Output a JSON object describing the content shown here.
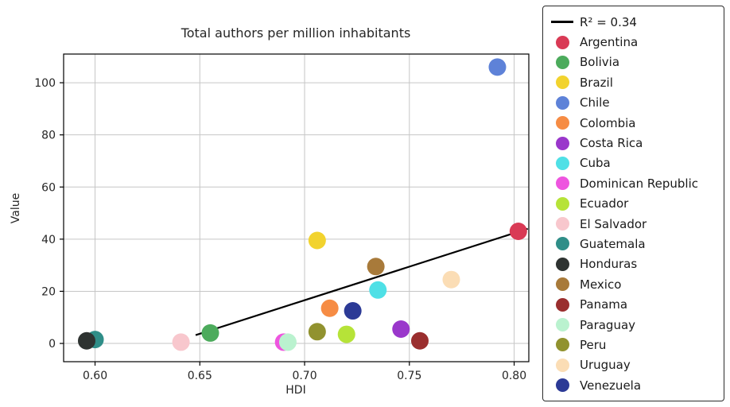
{
  "chart_data": {
    "type": "scatter",
    "title": "Total authors per million inhabitants",
    "xlabel": "HDI",
    "ylabel": "Value",
    "xlim": [
      0.585,
      0.807
    ],
    "ylim": [
      -7,
      111
    ],
    "xticks": [
      0.6,
      0.65,
      0.7,
      0.75,
      0.8
    ],
    "yticks": [
      0,
      20,
      40,
      60,
      80,
      100
    ],
    "grid": true,
    "legend_position": "outside-right",
    "regression": {
      "label": "R² = 0.34",
      "color": "#000000",
      "x": [
        0.648,
        0.8065
      ],
      "y": [
        3.2,
        44
      ]
    },
    "series": [
      {
        "name": "Argentina",
        "color": "#d93a55",
        "x": 0.802,
        "y": 43
      },
      {
        "name": "Bolivia",
        "color": "#4cab5c",
        "x": 0.655,
        "y": 4
      },
      {
        "name": "Brazil",
        "color": "#f2d32e",
        "x": 0.706,
        "y": 39.5
      },
      {
        "name": "Chile",
        "color": "#5e82d8",
        "x": 0.792,
        "y": 106
      },
      {
        "name": "Colombia",
        "color": "#f68c44",
        "x": 0.712,
        "y": 13.5
      },
      {
        "name": "Costa Rica",
        "color": "#9a37cb",
        "x": 0.746,
        "y": 5.5
      },
      {
        "name": "Cuba",
        "color": "#4fe0e6",
        "x": 0.735,
        "y": 20.5
      },
      {
        "name": "Dominican Republic",
        "color": "#ee55df",
        "x": 0.69,
        "y": 0.5
      },
      {
        "name": "Ecuador",
        "color": "#b6e338",
        "x": 0.72,
        "y": 3.5
      },
      {
        "name": "El Salvador",
        "color": "#f8c7cd",
        "x": 0.641,
        "y": 0.5
      },
      {
        "name": "Guatemala",
        "color": "#2f8e88",
        "x": 0.6,
        "y": 1.5
      },
      {
        "name": "Honduras",
        "color": "#2e3331",
        "x": 0.596,
        "y": 1
      },
      {
        "name": "Mexico",
        "color": "#a87a3a",
        "x": 0.734,
        "y": 29.5
      },
      {
        "name": "Panama",
        "color": "#9a2e2e",
        "x": 0.755,
        "y": 1
      },
      {
        "name": "Paraguay",
        "color": "#baf2cf",
        "x": 0.692,
        "y": 0.5
      },
      {
        "name": "Peru",
        "color": "#91922f",
        "x": 0.706,
        "y": 4.5
      },
      {
        "name": "Uruguay",
        "color": "#fbddb5",
        "x": 0.77,
        "y": 24.5
      },
      {
        "name": "Venezuela",
        "color": "#2c3a96",
        "x": 0.723,
        "y": 12.5
      }
    ]
  }
}
